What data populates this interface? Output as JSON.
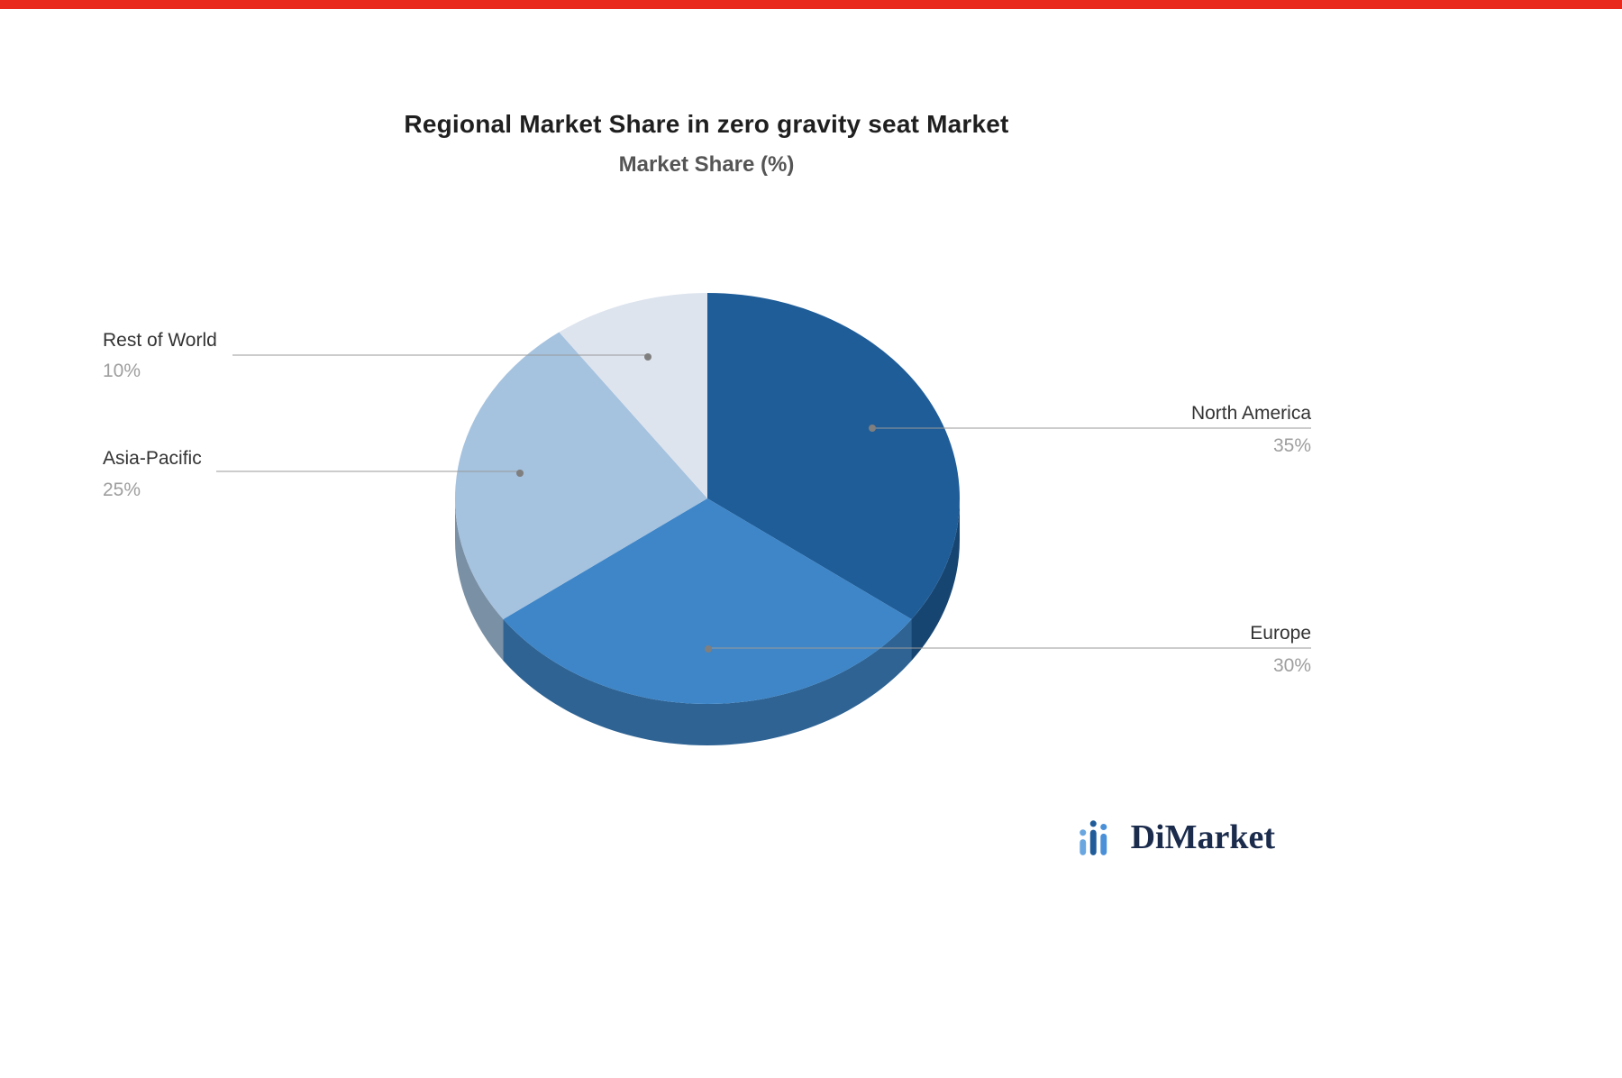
{
  "accent": {
    "top_bar_color": "#e8291c"
  },
  "chart_data": {
    "type": "pie",
    "style": "3d",
    "title": "Regional Market Share in zero gravity seat Market",
    "subtitle": "Market Share (%)",
    "categories": [
      "North America",
      "Europe",
      "Asia-Pacific",
      "Rest of World"
    ],
    "values": [
      35,
      30,
      25,
      10
    ],
    "value_labels": [
      "35%",
      "30%",
      "25%",
      "10%"
    ],
    "colors": [
      "#1f5d99",
      "#3e86c8",
      "#a5c2df",
      "#dde4ee"
    ],
    "start_angle_deg": 0,
    "direction": "clockwise",
    "legend_position": "callout-labels",
    "leader_line_color": "#999999",
    "leader_dot_color": "#7f7f7f"
  },
  "branding": {
    "logo_text": "DiMarket"
  }
}
